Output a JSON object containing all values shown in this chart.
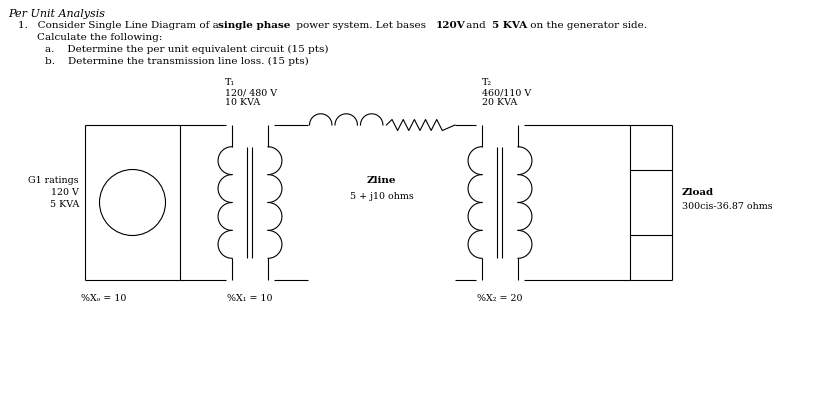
{
  "title_italic": "Per Unit Analysis",
  "T1_label": "T₁",
  "T1_sub1": "120/ 480 V",
  "T1_sub2": "10 KVA",
  "T2_label": "T₂",
  "T2_sub1": "460/110 V",
  "T2_sub2": "20 KVA",
  "zline_label": "Zline",
  "zline_value": "5 + j10 ohms",
  "g1_line1": "G1 ratings",
  "g1_line2": "120 V",
  "g1_line3": "5 KVA",
  "xg_label": "%Xₒ = 10",
  "x1_label": "%X₁ = 10",
  "x2_label": "%X₂ = 20",
  "zload_label": "Zload",
  "zload_value": "300cis-36.87 ohms",
  "bg_color": "#ffffff",
  "line_color": "#000000",
  "text_color": "#000000"
}
